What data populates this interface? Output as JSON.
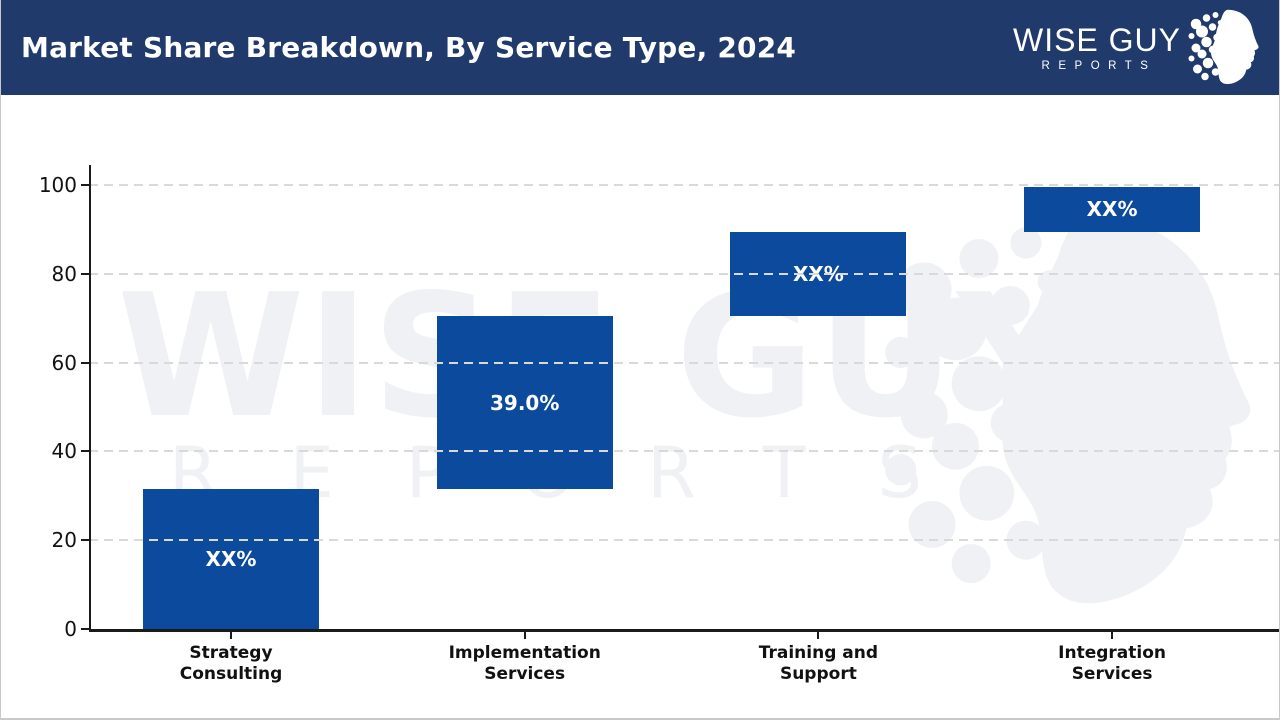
{
  "header": {
    "title": "Market Share Breakdown, By Service Type, 2024",
    "logo": {
      "line1": "WISE GUY",
      "line2": "REPORTS"
    }
  },
  "watermark": {
    "line1": "WISE GUY",
    "line2": "REPORTS"
  },
  "chart_data": {
    "type": "waterfall",
    "title": "Market Share Breakdown, By Service Type, 2024",
    "categories": [
      [
        "Strategy",
        "Consulting"
      ],
      [
        "Implementation",
        "Services"
      ],
      [
        "Training and",
        "Support"
      ],
      [
        "Integration",
        "Services"
      ]
    ],
    "segments": [
      {
        "name": "Strategy Consulting",
        "start": 0,
        "end": 31.5,
        "label": "XX%"
      },
      {
        "name": "Implementation Services",
        "start": 31.5,
        "end": 70.5,
        "label": "39.0%"
      },
      {
        "name": "Training and Support",
        "start": 70.5,
        "end": 89.5,
        "label": "XX%"
      },
      {
        "name": "Integration Services",
        "start": 89.5,
        "end": 99.5,
        "label": "XX%"
      }
    ],
    "yticks": [
      0,
      20,
      40,
      60,
      80,
      100
    ],
    "ylim": [
      0,
      104.5
    ],
    "grid": "dashed-horizontal",
    "legend": "none",
    "colors": {
      "bar": "#0C4A9E",
      "bar_label": "#FFFFFF",
      "axis": "#1A1A1A",
      "grid": "#D9D9D9",
      "header_bg": "#203A6B",
      "watermark": "#F0F1F4"
    }
  }
}
